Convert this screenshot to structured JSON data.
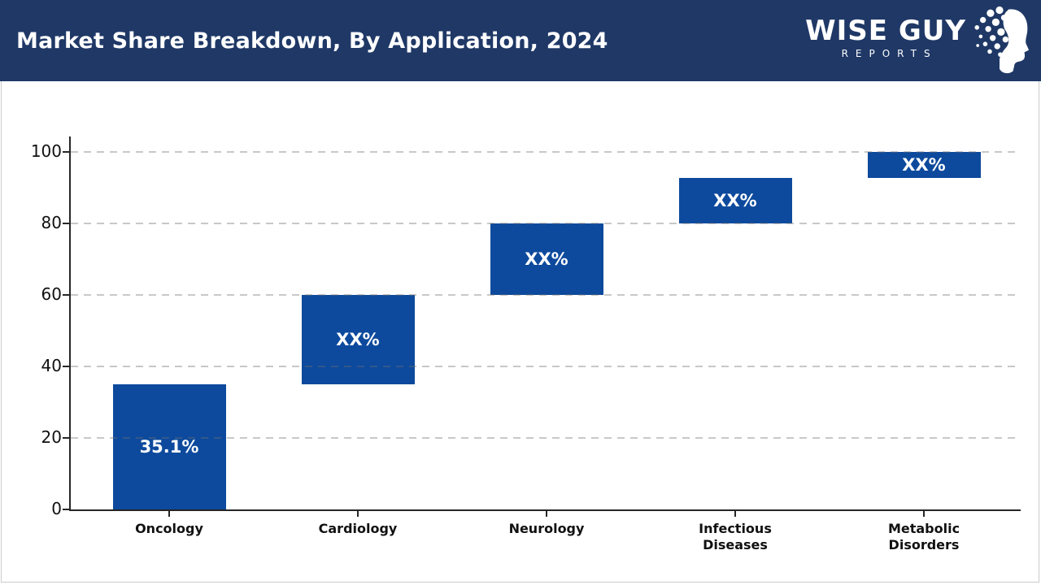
{
  "header": {
    "title": "Market Share Breakdown, By Application, 2024",
    "bg_color": "#1F3866",
    "logo": {
      "line1": "WISE GUY",
      "line2": "REPORTS"
    }
  },
  "watermark": {
    "line1": "WISE GUY",
    "line2": "REPORTS"
  },
  "chart_data": {
    "type": "bar",
    "subtype": "waterfall",
    "title": "Market Share Breakdown, By Application, 2024",
    "categories": [
      "Oncology",
      "Cardiology",
      "Neurology",
      "Infectious Diseases",
      "Metabolic Disorders"
    ],
    "segments": [
      {
        "category": "Oncology",
        "start": 0,
        "end": 35.1,
        "label": "35.1%"
      },
      {
        "category": "Cardiology",
        "start": 35.1,
        "end": 60,
        "label": "XX%"
      },
      {
        "category": "Neurology",
        "start": 60,
        "end": 80,
        "label": "XX%"
      },
      {
        "category": "Infectious Diseases",
        "start": 80,
        "end": 92.7,
        "label": "XX%"
      },
      {
        "category": "Metabolic Disorders",
        "start": 92.7,
        "end": 100,
        "label": "XX%"
      }
    ],
    "y_ticks": [
      0,
      20,
      40,
      60,
      80,
      100
    ],
    "ylim": [
      0,
      100
    ],
    "xlabel": "",
    "ylabel": "",
    "bar_color": "#0D4A9D",
    "label_color": "#ffffff",
    "grid": "dashed-horizontal",
    "gridline_color": "#d9d9d9",
    "legend": "none"
  }
}
